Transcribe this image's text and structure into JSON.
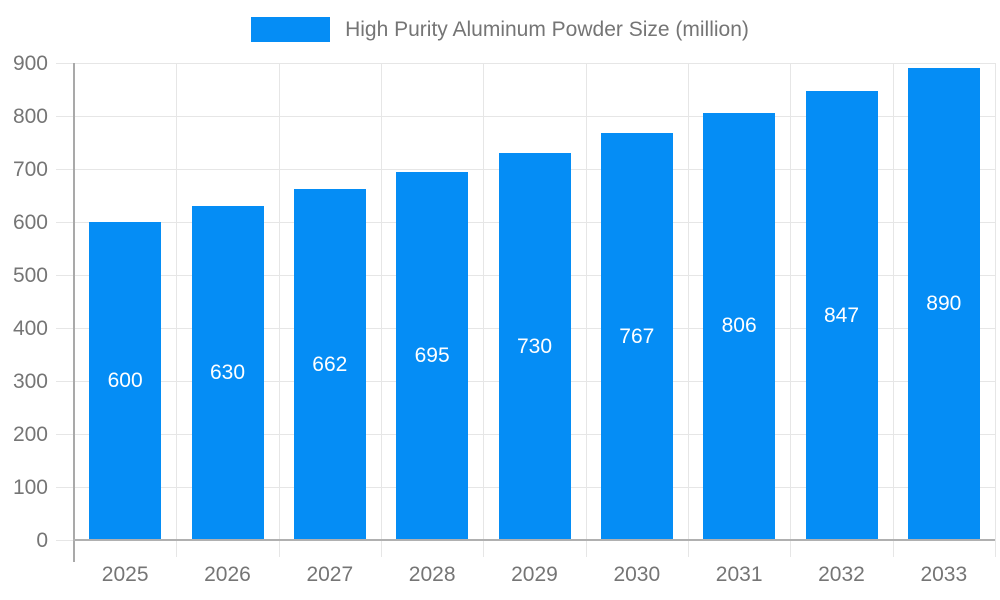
{
  "legend": {
    "label": "High Purity Aluminum Powder Size (million)"
  },
  "chart_data": {
    "type": "bar",
    "title": "High Purity Aluminum Powder Size (million)",
    "categories": [
      "2025",
      "2026",
      "2027",
      "2028",
      "2029",
      "2030",
      "2031",
      "2032",
      "2033"
    ],
    "values": [
      600,
      630,
      662,
      695,
      730,
      767,
      806,
      847,
      890
    ],
    "xlabel": "",
    "ylabel": "",
    "ylim": [
      0,
      900
    ],
    "ytick_step": 100,
    "ytick_labels": [
      "0",
      "100",
      "200",
      "300",
      "400",
      "500",
      "600",
      "700",
      "800",
      "900"
    ],
    "grid": true,
    "legend_position": "top-center",
    "bar_color": "#058DF5",
    "bar_label_color": "#ffffff",
    "axis_line_color": "#a9a9a9",
    "grid_color": "#e6e6e6",
    "tick_label_color": "#757575"
  }
}
